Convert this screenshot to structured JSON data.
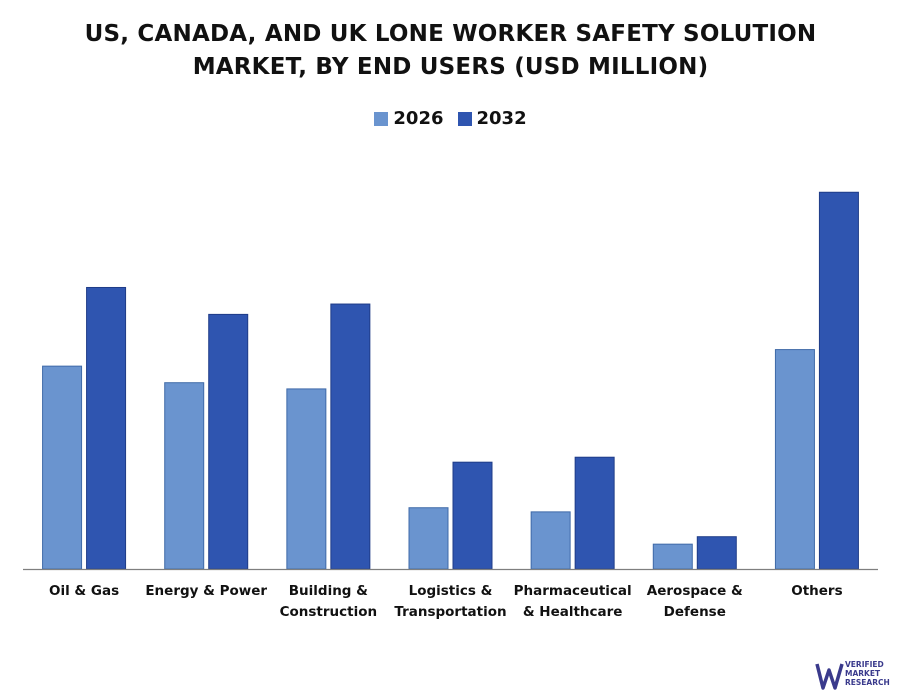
{
  "chart_data": {
    "type": "bar",
    "title_lines": [
      "US, CANADA, AND UK LONE WORKER SAFETY SOLUTION",
      "MARKET, BY END USERS (USD MILLION)"
    ],
    "categories": [
      [
        "Oil & Gas"
      ],
      [
        "Energy & Power"
      ],
      [
        "Building &",
        "Construction"
      ],
      [
        "Logistics &",
        "Transportation"
      ],
      [
        "Pharmaceutical",
        "& Healthcare"
      ],
      [
        "Aerospace &",
        "Defense"
      ],
      [
        "Others"
      ]
    ],
    "series": [
      {
        "name": "2026",
        "color": "#6a94cf",
        "values": [
          49,
          45,
          43.5,
          14.8,
          13.8,
          6,
          53
        ]
      },
      {
        "name": "2032",
        "color": "#2f55b0",
        "values": [
          68,
          61.5,
          64,
          25.8,
          27,
          7.8,
          91
        ]
      }
    ],
    "ylim": [
      0,
      100
    ],
    "legend": "top-center",
    "grid": false,
    "xlabel": "",
    "ylabel": ""
  },
  "logo": {
    "lines": [
      "VERIFIED",
      "MARKET",
      "RESEARCH"
    ],
    "color": "#3a3a8c"
  }
}
